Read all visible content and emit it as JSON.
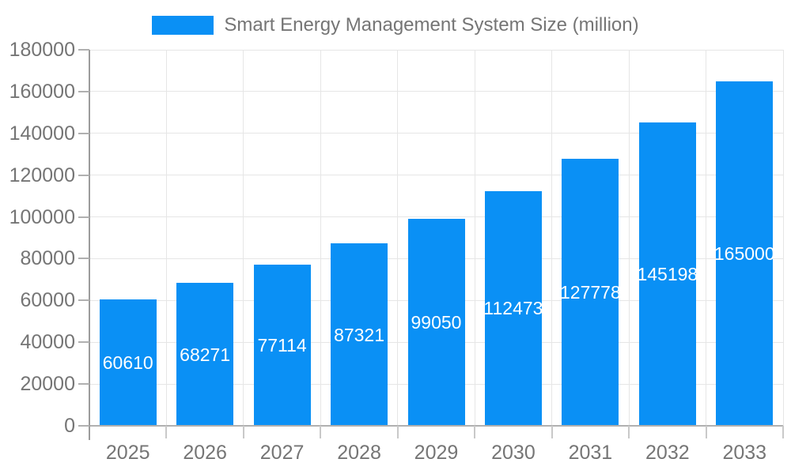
{
  "chart_data": {
    "type": "bar",
    "title": "Smart Energy Management System Size (million)",
    "legend": {
      "position": "top",
      "label": "Smart Energy Management System Size (million)"
    },
    "categories": [
      "2025",
      "2026",
      "2027",
      "2028",
      "2029",
      "2030",
      "2031",
      "2032",
      "2033"
    ],
    "series": [
      {
        "name": "Smart Energy Management System Size (million)",
        "values": [
          60610,
          68271,
          77114,
          87321,
          99050,
          112473,
          127778,
          145198,
          165000
        ]
      }
    ],
    "bar_value_labels_shown": true,
    "xlabel": "",
    "ylabel": "",
    "ylim": [
      0,
      180000
    ],
    "yticks": [
      0,
      20000,
      40000,
      60000,
      80000,
      100000,
      120000,
      140000,
      160000,
      180000
    ],
    "grid": true,
    "colors": {
      "bar": "#0a90f5",
      "bar_label_text": "#ffffff",
      "axis_text": "#757575",
      "legend_text": "#757575",
      "gridline": "#e6e6e6",
      "axis_line": "#9c9c9c",
      "baseline": "#b0b0b0",
      "tick": "#b0b0b0",
      "x_tick": "#c9c9c9",
      "background": "#ffffff"
    }
  }
}
